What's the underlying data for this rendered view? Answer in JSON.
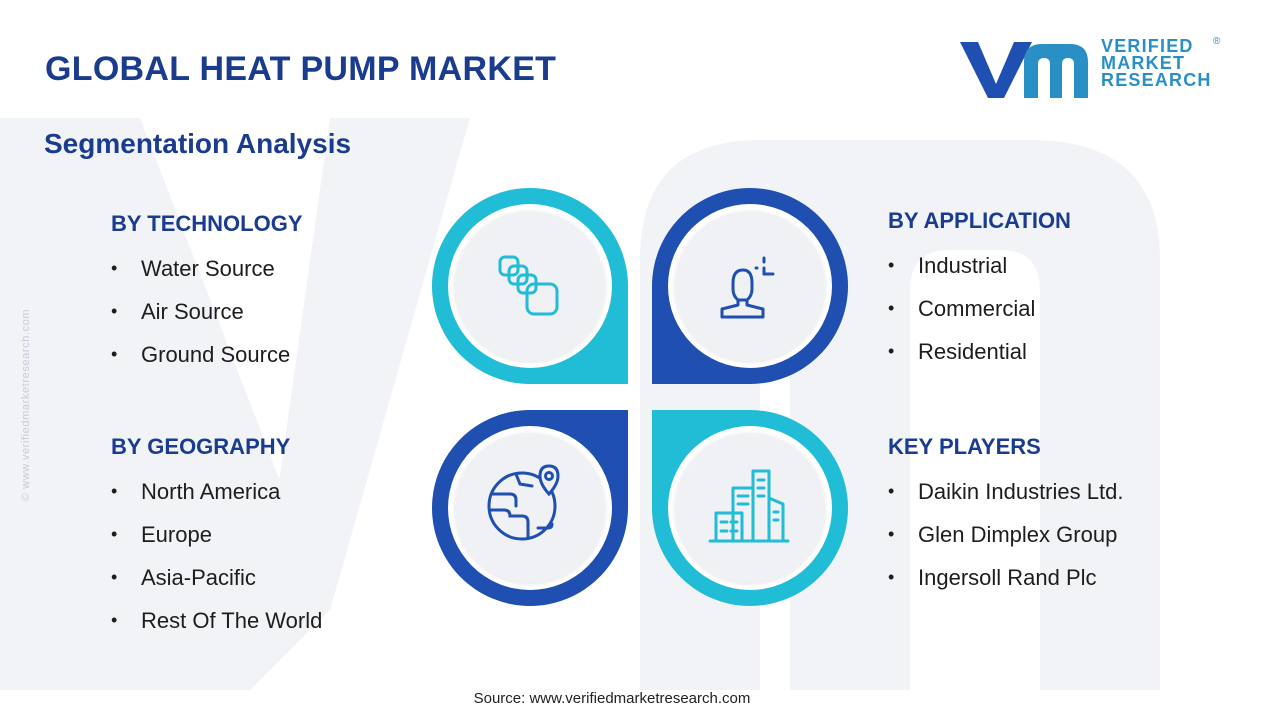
{
  "header": {
    "title": "GLOBAL HEAT PUMP MARKET",
    "subtitle": "Segmentation Analysis"
  },
  "logo": {
    "line1": "VERIFIED",
    "line2": "MARKET",
    "line3": "RESEARCH",
    "registered": "®"
  },
  "side_text": "© www.verifiedmarketresearch.com",
  "segments": {
    "technology": {
      "heading": "BY TECHNOLOGY",
      "items": [
        "Water Source",
        "Air Source",
        "Ground Source"
      ]
    },
    "application": {
      "heading": "BY APPLICATION",
      "items": [
        "Industrial",
        "Commercial",
        "Residential"
      ]
    },
    "geography": {
      "heading": "BY GEOGRAPHY",
      "items": [
        "North America",
        "Europe",
        "Asia-Pacific",
        "Rest Of The World"
      ]
    },
    "players": {
      "heading": "KEY PLAYERS",
      "items": [
        "Daikin Industries Ltd.",
        "Glen Dimplex Group",
        "Ingersoll Rand Plc"
      ]
    }
  },
  "icons": {
    "technology": "stacked-blocks-icon",
    "application": "user-with-signal-icon",
    "geography": "globe-location-icon",
    "players": "city-buildings-icon"
  },
  "colors": {
    "navy": "#1a3c8f",
    "dark_blue": "#1f4fb0",
    "cyan": "#21bcd6",
    "logo_blue": "#2a8fc4",
    "circle_fill": "#eff1f4"
  },
  "source": "Source: www.verifiedmarketresearch.com"
}
